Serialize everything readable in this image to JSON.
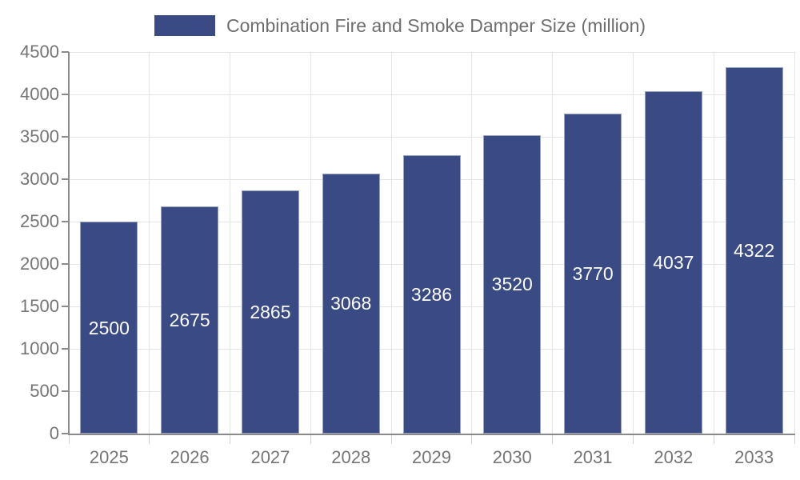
{
  "legend": {
    "label": "Combination Fire and Smoke Damper Size (million)"
  },
  "chart_data": {
    "type": "bar",
    "title": "",
    "series_name": "Combination Fire and Smoke Damper Size (million)",
    "categories": [
      "2025",
      "2026",
      "2027",
      "2028",
      "2029",
      "2030",
      "2031",
      "2032",
      "2033"
    ],
    "values": [
      2500,
      2675,
      2865,
      3068,
      3286,
      3520,
      3770,
      4037,
      4322
    ],
    "bar_labels": [
      "2500",
      "2675",
      "2865",
      "3068",
      "3286",
      "3520",
      "3770",
      "4037",
      "4322"
    ],
    "xlabel": "",
    "ylabel": "",
    "ylim": [
      0,
      4500
    ],
    "yticks": [
      0,
      500,
      1000,
      1500,
      2000,
      2500,
      3000,
      3500,
      4000,
      4500
    ],
    "grid": true,
    "legend_position": "top",
    "colors": {
      "bar": "#3A4A84",
      "bar_border": "#9AA3C2",
      "bar_label": "#ffffff",
      "grid_line": "#e4e4e4",
      "axis_line": "#8a8a8a",
      "boundary_tick": "#ccd0dc",
      "tick_label": "#757575",
      "legend_text": "#6e6e6e",
      "background": "#ffffff"
    }
  }
}
